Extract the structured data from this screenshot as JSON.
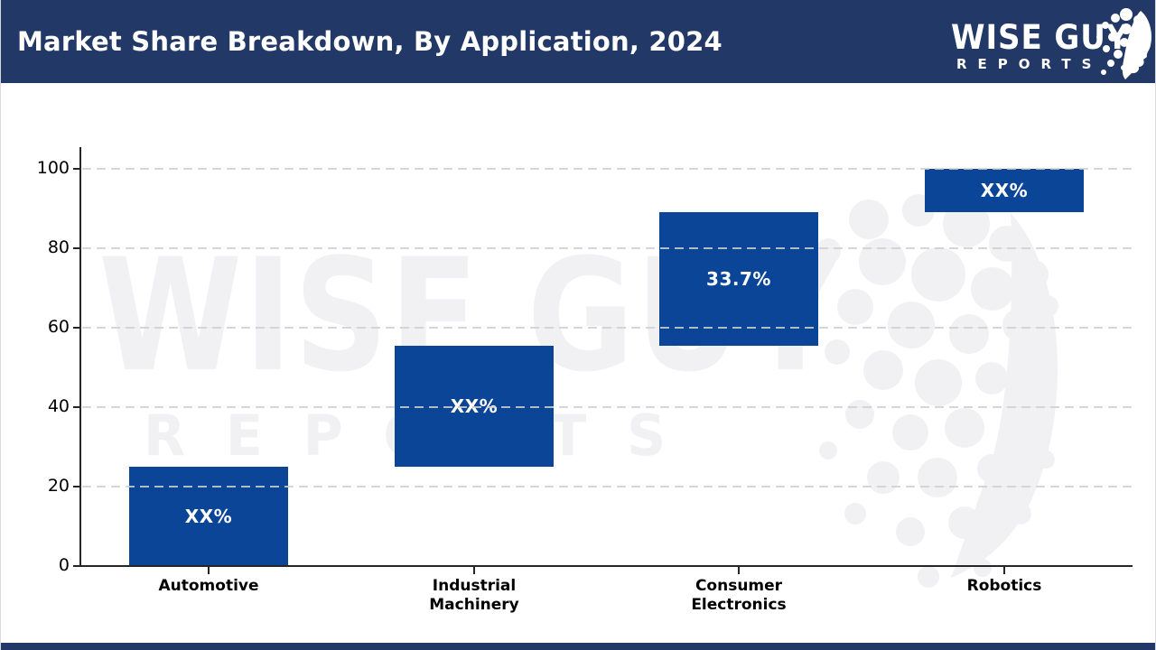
{
  "header": {
    "title": "Market Share Breakdown, By Application, 2024",
    "logo": {
      "brand": "WISE GUY",
      "sub": "REPORTS",
      "head_icon": "dotted-head-profile"
    }
  },
  "watermark": {
    "brand": "WISE GUY",
    "sub": "REPORTS",
    "head_icon": "dotted-head-profile"
  },
  "chart_data": {
    "type": "bar",
    "subtype": "floating-waterfall",
    "title": "Market Share Breakdown, By Application, 2024",
    "categories": [
      [
        "Automotive"
      ],
      [
        "Industrial",
        "Machinery"
      ],
      [
        "Consumer",
        "Electronics"
      ],
      [
        "Robotics"
      ]
    ],
    "segments": [
      {
        "category": "Automotive",
        "start": 0,
        "end": 25,
        "label": "XX%"
      },
      {
        "category": "Industrial Machinery",
        "start": 25,
        "end": 55.5,
        "label": "XX%"
      },
      {
        "category": "Consumer Electronics",
        "start": 55.5,
        "end": 89.2,
        "label": "33.7%"
      },
      {
        "category": "Robotics",
        "start": 89.2,
        "end": 100,
        "label": "XX%"
      }
    ],
    "yticks": [
      0,
      20,
      40,
      60,
      80,
      100
    ],
    "ylim": [
      0,
      105.5
    ],
    "xlabel": "",
    "ylabel": "",
    "legend": "none",
    "grid": {
      "horizontal": true,
      "style": "dashed"
    },
    "bar_color": "#0a4597",
    "value_label_color": "#ffffff"
  },
  "colors": {
    "header_bg": "#223866",
    "footer_bg": "#223866",
    "bar": "#0a4597",
    "axis": "#262626",
    "gridline": "#cfcfcf",
    "watermark": "#f1f1f3"
  }
}
